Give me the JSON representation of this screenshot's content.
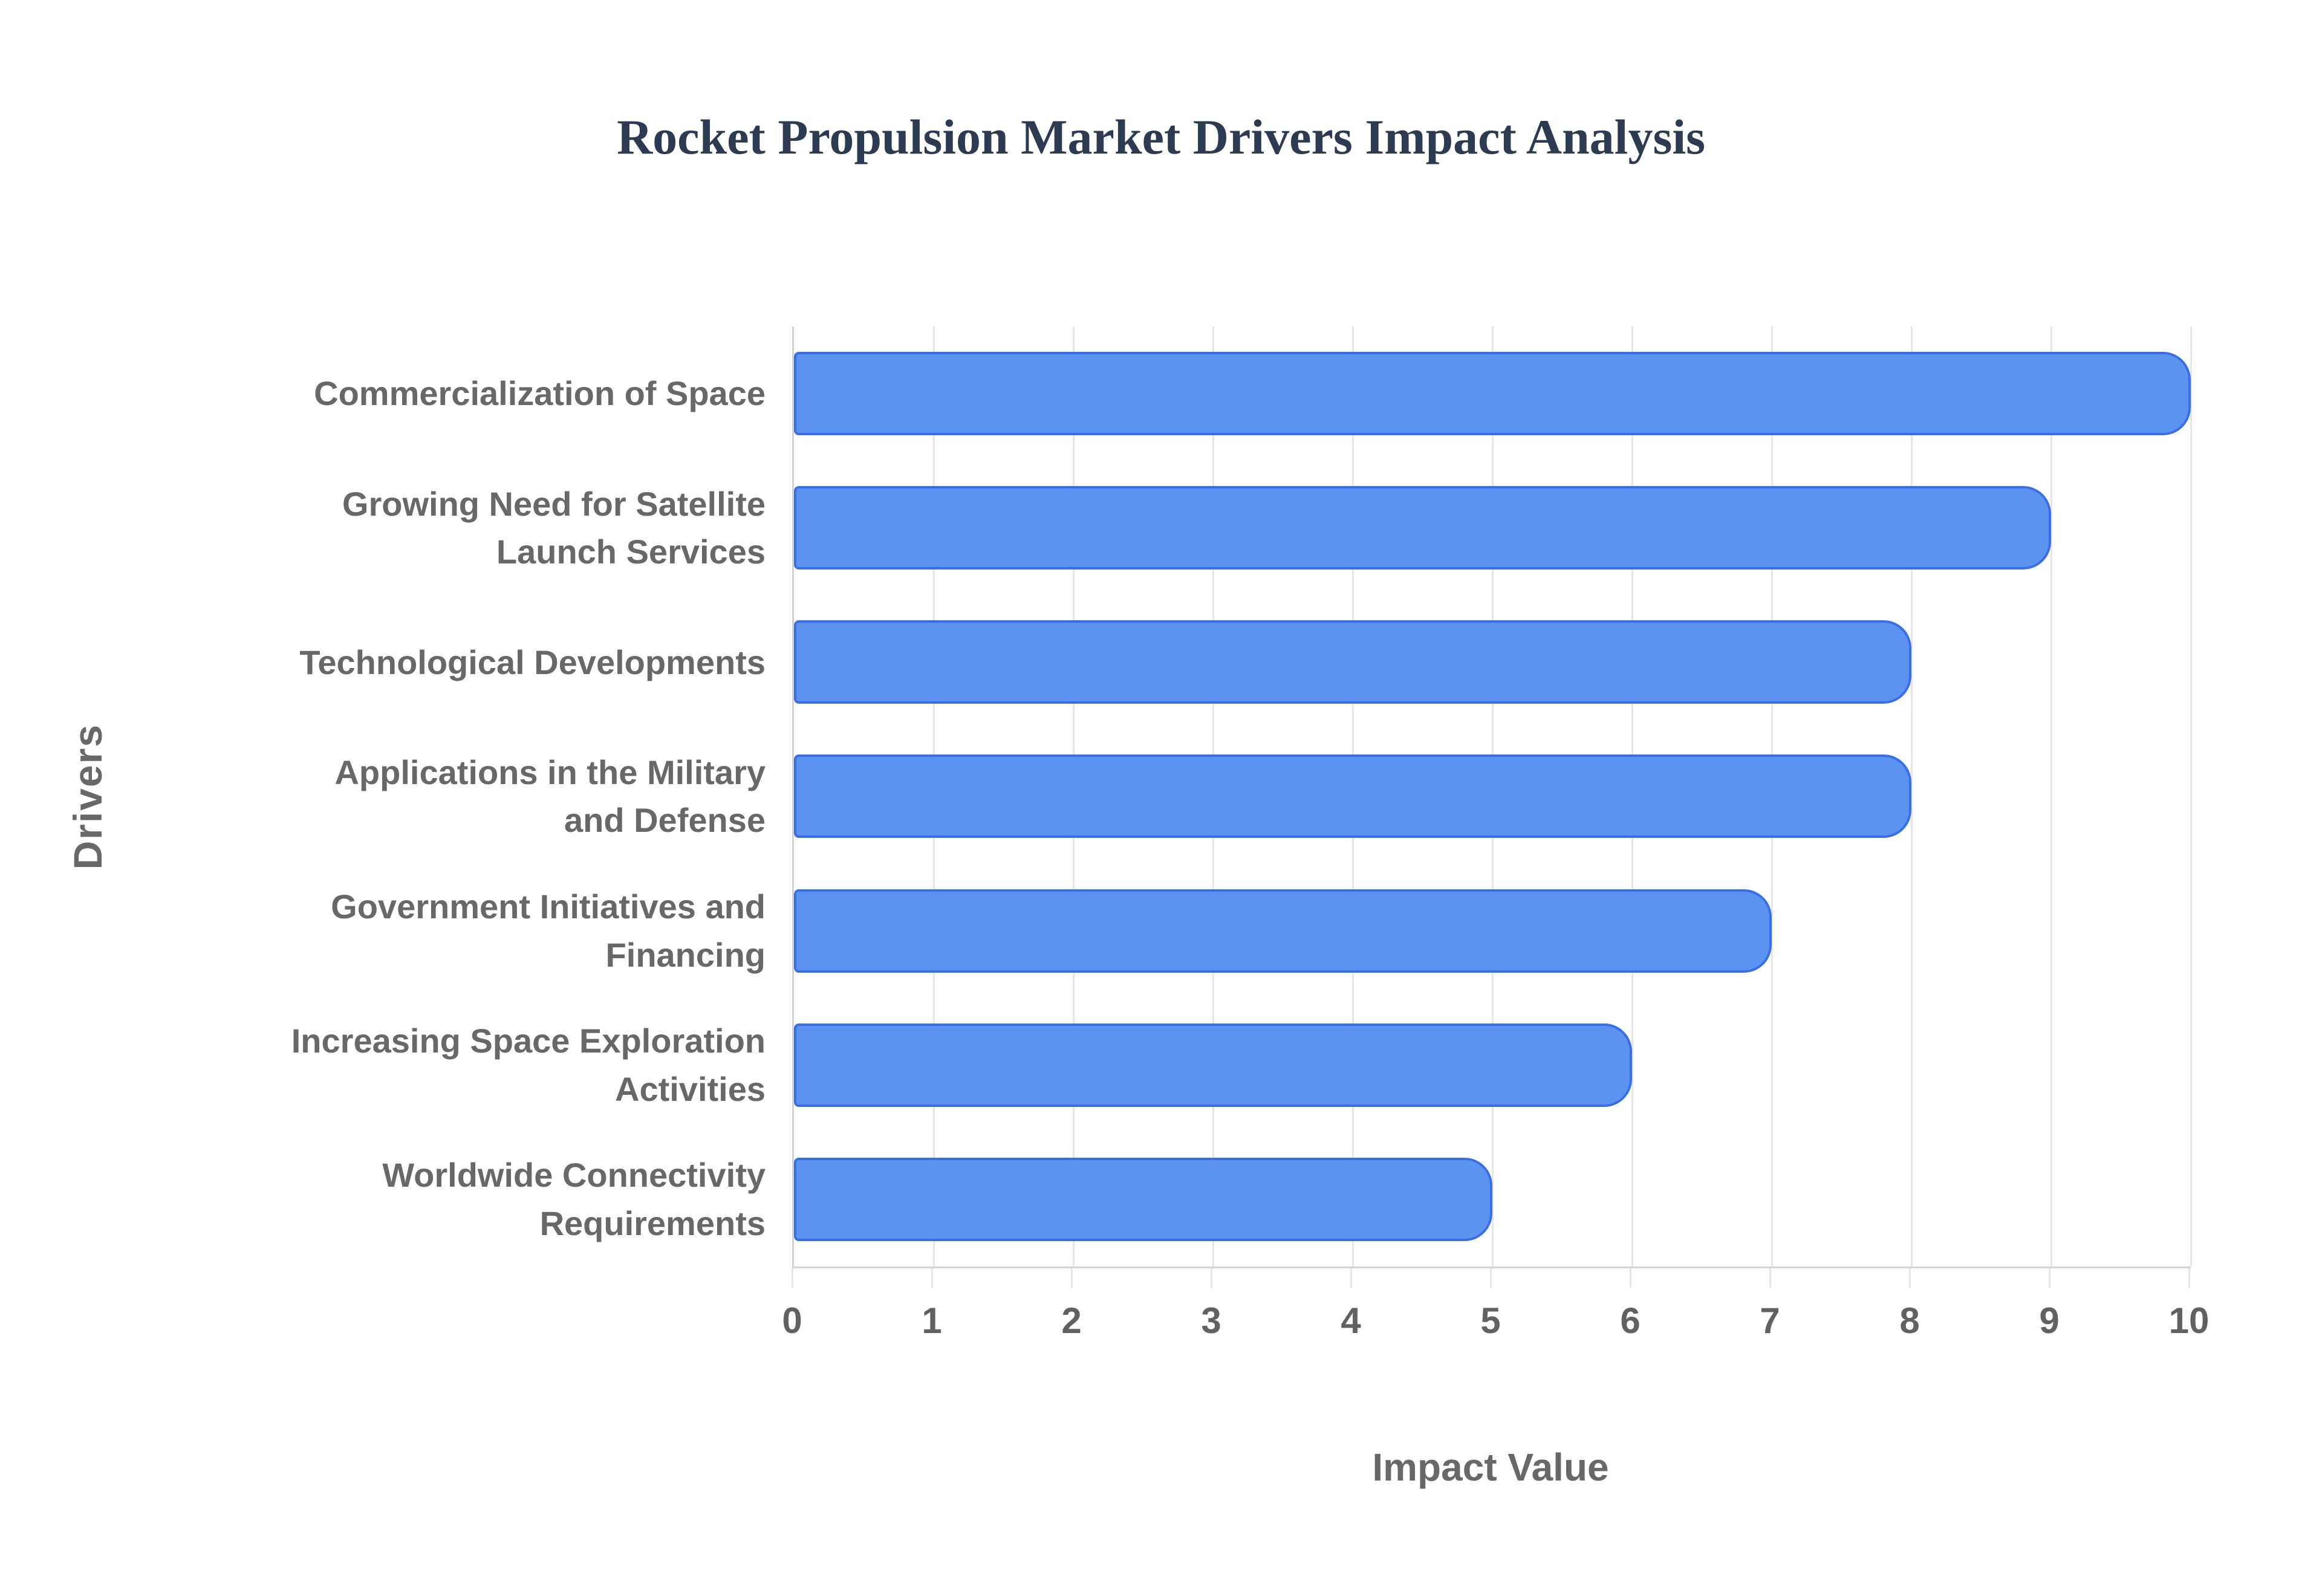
{
  "title": {
    "text": "Rocket Propulsion Market Drivers Impact Analysis"
  },
  "axes": {
    "x_title": "Impact Value",
    "y_title": "Drivers"
  },
  "chart_data": {
    "type": "bar",
    "orientation": "horizontal",
    "title": "Rocket Propulsion Market Drivers Impact Analysis",
    "xlabel": "Impact Value",
    "ylabel": "Drivers",
    "xlim": [
      0,
      10
    ],
    "xticks": [
      0,
      1,
      2,
      3,
      4,
      5,
      6,
      7,
      8,
      9,
      10
    ],
    "grid": true,
    "legend": false,
    "categories": [
      "Commercialization of Space",
      "Growing Need for Satellite Launch Services",
      "Technological Developments",
      "Applications in the Military and Defense",
      "Government Initiatives and Financing",
      "Increasing Space Exploration Activities",
      "Worldwide Connectivity Requirements"
    ],
    "display_labels": [
      "Commercialization of Space",
      "Growing Need for Satellite\nLaunch Services",
      "Technological Developments",
      "Applications in the Military\nand Defense",
      "Government Initiatives and\nFinancing",
      "Increasing Space Exploration\nActivities",
      "Worldwide Connectivity\nRequirements"
    ],
    "values": [
      10,
      9,
      8,
      8,
      7,
      6,
      5
    ]
  },
  "colors": {
    "title_text": "#2c3a52",
    "bar_fill": "#5d93f0",
    "bar_border": "#3a6ee4",
    "gridline": "#e4e6e8",
    "axis_line": "#d4d4d4",
    "label_text": "#686868",
    "tick_text": "#616161"
  }
}
